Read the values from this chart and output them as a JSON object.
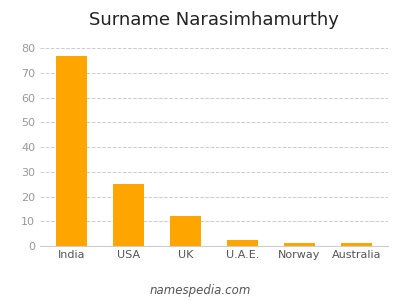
{
  "title": "Surname Narasimhamurthy",
  "categories": [
    "India",
    "USA",
    "UK",
    "U.A.E.",
    "Norway",
    "Australia"
  ],
  "values": [
    77,
    25,
    12,
    2.5,
    1.2,
    1.2
  ],
  "bar_color": "#FFA500",
  "ylim": [
    0,
    85
  ],
  "yticks": [
    0,
    10,
    20,
    30,
    40,
    50,
    60,
    70,
    80
  ],
  "grid_color": "#cccccc",
  "background_color": "#ffffff",
  "title_fontsize": 13,
  "tick_fontsize": 8,
  "footer_text": "namespedia.com",
  "footer_fontsize": 8.5
}
